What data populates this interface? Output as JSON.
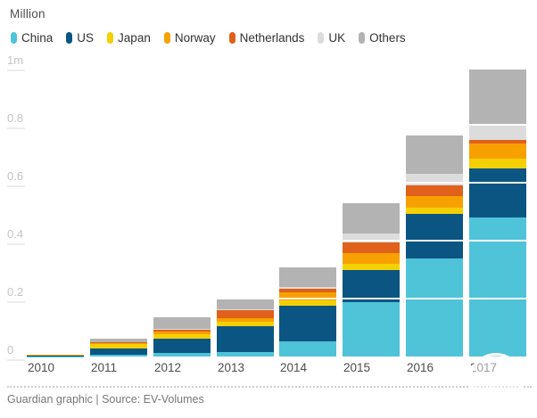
{
  "title": "Million",
  "footer": {
    "text": "Guardian graphic | Source: EV-Volumes"
  },
  "chart_data": {
    "type": "bar",
    "stacked": true,
    "title": "Million",
    "ylabel": "Million",
    "xlabel": "",
    "legend_position": "top",
    "grid": "horizontal-white-over-bars",
    "ylim": [
      0,
      1.05
    ],
    "y_ticks": [
      {
        "label": "1m",
        "value": 1.0
      },
      {
        "label": "0.8",
        "value": 0.8
      },
      {
        "label": "0.6",
        "value": 0.6
      },
      {
        "label": "0.4",
        "value": 0.4
      },
      {
        "label": "0.2",
        "value": 0.2
      },
      {
        "label": "0",
        "value": 0.0
      }
    ],
    "categories": [
      "2010",
      "2011",
      "2012",
      "2013",
      "2014",
      "2015",
      "2016",
      "2017"
    ],
    "series": [
      {
        "name": "China",
        "color": "#4fc3d8",
        "values": [
          0.001,
          0.005,
          0.012,
          0.015,
          0.052,
          0.188,
          0.338,
          0.48
        ]
      },
      {
        "name": "US",
        "color": "#0b5583",
        "values": [
          0.001,
          0.022,
          0.049,
          0.089,
          0.123,
          0.111,
          0.154,
          0.169
        ]
      },
      {
        "name": "Japan",
        "color": "#f5d000",
        "values": [
          0.002,
          0.016,
          0.015,
          0.015,
          0.018,
          0.022,
          0.022,
          0.034
        ]
      },
      {
        "name": "Norway",
        "color": "#f7a100",
        "values": [
          0.001,
          0.003,
          0.01,
          0.015,
          0.028,
          0.037,
          0.04,
          0.052
        ]
      },
      {
        "name": "Netherlands",
        "color": "#e0611b",
        "values": [
          0.0,
          0.002,
          0.006,
          0.025,
          0.012,
          0.037,
          0.037,
          0.012
        ]
      },
      {
        "name": "UK",
        "color": "#dcdcdc",
        "values": [
          0.0,
          0.002,
          0.003,
          0.003,
          0.006,
          0.031,
          0.04,
          0.055
        ]
      },
      {
        "name": "Others",
        "color": "#b3b3b3",
        "values": [
          0.001,
          0.013,
          0.04,
          0.04,
          0.068,
          0.105,
          0.132,
          0.19
        ]
      }
    ]
  }
}
